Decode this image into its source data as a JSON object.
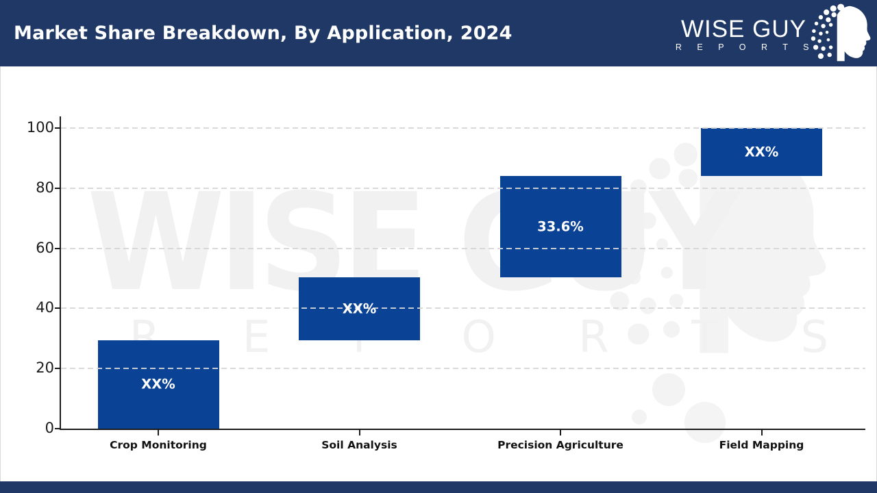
{
  "header": {
    "title": "Market Share Breakdown, By Application, 2024",
    "logo": {
      "wordmark": "WISE GUY",
      "subtext": "R E P O R T S"
    }
  },
  "watermark": {
    "line1": "WISE GUY",
    "line2": "R E P O R T S"
  },
  "chart_data": {
    "type": "bar",
    "subtype": "floating-segment-market-share",
    "title": "Market Share Breakdown, By Application, 2024",
    "categories": [
      "Crop Monitoring",
      "Soil Analysis",
      "Precision Agriculture",
      "Field Mapping"
    ],
    "segments": [
      {
        "category": "Crop Monitoring",
        "start": 0,
        "end": 29.4,
        "label": "XX%"
      },
      {
        "category": "Soil Analysis",
        "start": 29.4,
        "end": 50.4,
        "label": "XX%"
      },
      {
        "category": "Precision Agriculture",
        "start": 50.4,
        "end": 84.0,
        "label": "33.6%"
      },
      {
        "category": "Field Mapping",
        "start": 84.0,
        "end": 100,
        "label": "XX%"
      }
    ],
    "y_ticks": [
      0,
      20,
      40,
      60,
      80,
      100
    ],
    "ylim": [
      0,
      100
    ],
    "xlabel": "",
    "ylabel": "",
    "grid": "horizontal-dashed-over-bars",
    "legend": "none"
  },
  "colors": {
    "header_bg": "#1f3865",
    "footer_bg": "#1f3865",
    "bar": "#0a4296",
    "bar_label": "#ffffff",
    "axis": "#1a1a1a",
    "grid": "#d6d6d6",
    "watermark": "#f1f1f1",
    "title_text": "#ffffff"
  }
}
